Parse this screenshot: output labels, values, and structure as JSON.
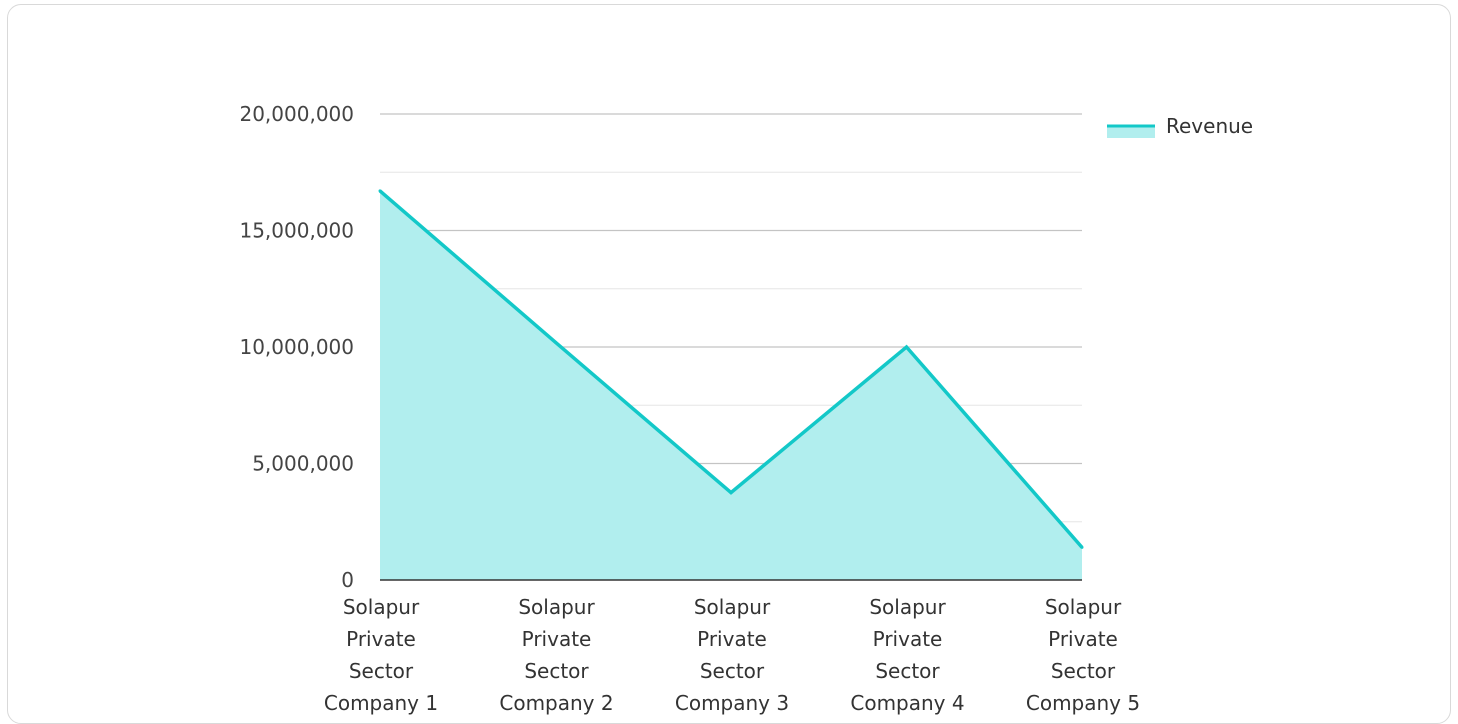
{
  "chart_data": {
    "type": "area",
    "categories": [
      "Solapur Private Sector Company 1",
      "Solapur Private Sector Company 2",
      "Solapur Private Sector Company 3",
      "Solapur Private Sector Company 4",
      "Solapur Private Sector Company 5"
    ],
    "series": [
      {
        "name": "Revenue",
        "values": [
          16700000,
          10200000,
          3750000,
          10000000,
          1400000
        ]
      }
    ],
    "yticks": [
      "0",
      "5,000,000",
      "10,000,000",
      "15,000,000",
      "20,000,000"
    ],
    "ylim": [
      0,
      20000000
    ],
    "legend_position": "top-right",
    "grid": true,
    "colors": {
      "line": "#13c8c8",
      "fill": "#b1eeee",
      "axis": "#333333",
      "grid_major": "#c4c4c4",
      "grid_minor": "#e6e6e6",
      "border": "#d9d9d9"
    }
  }
}
